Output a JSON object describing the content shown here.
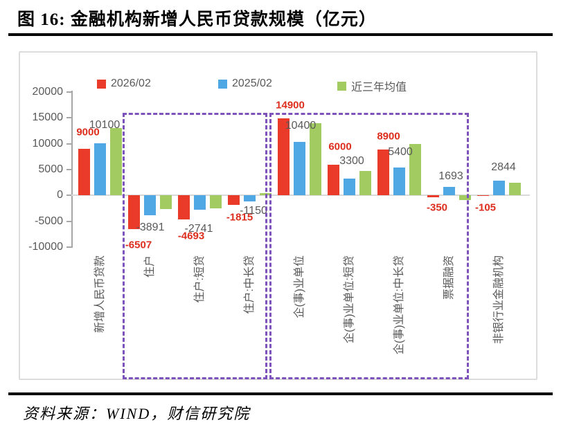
{
  "title": "图 16:  金融机构新增人民币贷款规模（亿元）",
  "source": "资料来源：WIND，财信研究院",
  "colors": {
    "bar_red": "#ea3a2a",
    "bar_blue": "#4fa8e3",
    "bar_green": "#a2cc62",
    "label_red": "#dd2e1d",
    "text_gray": "#595959",
    "axis_line": "#a6a6a6",
    "grid_line": "#d9d9d9",
    "highlight_purple": "#7d52ba",
    "frame_border": "#dcdcdc"
  },
  "chart_data": {
    "type": "bar",
    "title": "金融机构新增人民币贷款规模（亿元）",
    "categories": [
      "新增人民币贷款",
      "住户",
      "住户:短贷",
      "住户:中长贷",
      "企(事)业单位",
      "企(事)业单位:短贷",
      "企(事)业单位:中长贷",
      "票据融资",
      "非银行业金融机构"
    ],
    "series": [
      {
        "name": "2026/02",
        "color_key": "bar_red",
        "label_color_key": "label_red",
        "labels_shown": true,
        "values": [
          9000,
          -6507,
          -4693,
          -1815,
          14900,
          6000,
          8900,
          -350,
          -105
        ]
      },
      {
        "name": "2025/02",
        "color_key": "bar_blue",
        "label_color_key": "text_gray",
        "labels_shown": true,
        "values": [
          10100,
          -3891,
          -2741,
          -1150,
          10400,
          3300,
          5400,
          1693,
          2844
        ]
      },
      {
        "name": "近三年均值",
        "color_key": "bar_green",
        "labels_shown": false,
        "values": [
          13000,
          -2700,
          -2500,
          500,
          14000,
          4700,
          9900,
          -900,
          2400
        ]
      }
    ],
    "ylim": [
      -10000,
      20000
    ],
    "ytick_step": 5000,
    "yticks": [
      "20000",
      "15000",
      "10000",
      "5000",
      "0",
      "-5000",
      "-10000"
    ],
    "legend_position": "top",
    "grid": "zero-line-only",
    "highlight_boxes": [
      {
        "style": "dashed",
        "color_key": "highlight_purple",
        "covers": [
          "住户",
          "住户:短贷",
          "住户:中长贷"
        ]
      },
      {
        "style": "dashed",
        "color_key": "highlight_purple",
        "covers": [
          "企(事)业单位",
          "企(事)业单位:短贷",
          "企(事)业单位:中长贷",
          "票据融资"
        ]
      }
    ]
  }
}
